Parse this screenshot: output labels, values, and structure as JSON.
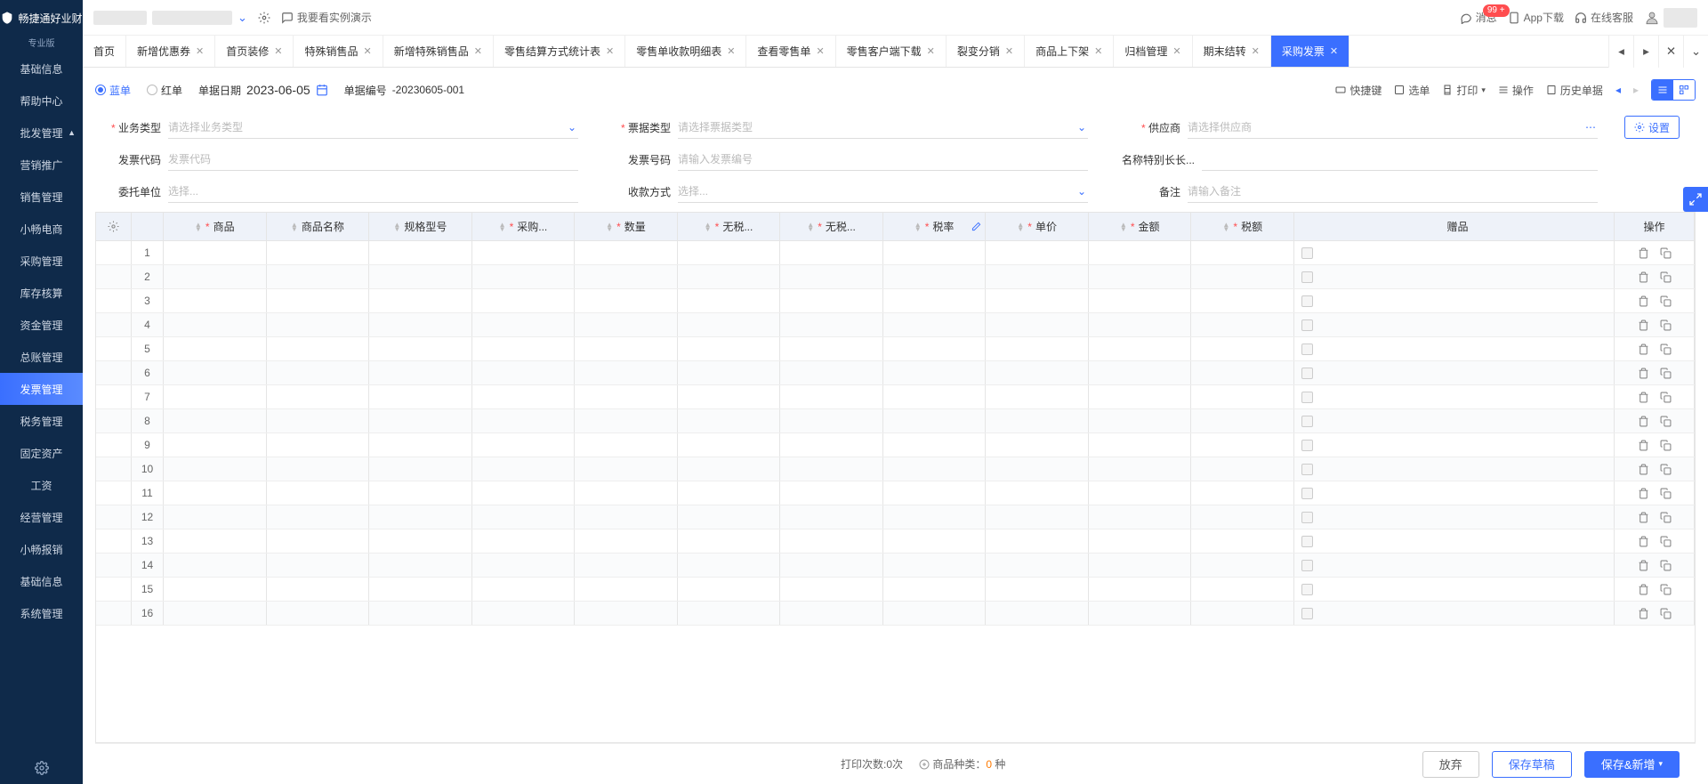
{
  "brand": {
    "name": "畅捷通好业财",
    "edition": "专业版"
  },
  "topbar": {
    "demo_link": "我要看实例演示",
    "msg": "消息",
    "msg_badge": "99 +",
    "app_dl": "App下载",
    "online_cs": "在线客服"
  },
  "sidebar": {
    "items": [
      {
        "label": "基础信息"
      },
      {
        "label": "帮助中心"
      },
      {
        "label": "批发管理",
        "caret": "▲"
      },
      {
        "label": "营销推广"
      },
      {
        "label": "销售管理"
      },
      {
        "label": "小畅电商"
      },
      {
        "label": "采购管理"
      },
      {
        "label": "库存核算"
      },
      {
        "label": "资金管理"
      },
      {
        "label": "总账管理"
      },
      {
        "label": "发票管理",
        "active": true
      },
      {
        "label": "税务管理"
      },
      {
        "label": "固定资产"
      },
      {
        "label": "工资"
      },
      {
        "label": "经营管理"
      },
      {
        "label": "小畅报销"
      },
      {
        "label": "基础信息"
      },
      {
        "label": "系统管理"
      }
    ]
  },
  "tabs": [
    {
      "label": "首页"
    },
    {
      "label": "新增优惠券",
      "x": true
    },
    {
      "label": "首页装修",
      "x": true
    },
    {
      "label": "特殊销售品",
      "x": true
    },
    {
      "label": "新增特殊销售品",
      "x": true
    },
    {
      "label": "零售结算方式统计表",
      "x": true
    },
    {
      "label": "零售单收款明细表",
      "x": true
    },
    {
      "label": "查看零售单",
      "x": true
    },
    {
      "label": "零售客户端下载",
      "x": true
    },
    {
      "label": "裂变分销",
      "x": true
    },
    {
      "label": "商品上下架",
      "x": true
    },
    {
      "label": "归档管理",
      "x": true
    },
    {
      "label": "期末结转",
      "x": true
    },
    {
      "label": "采购发票",
      "x": true,
      "active": true
    }
  ],
  "formTop": {
    "blue": "蓝单",
    "red": "红单",
    "doc_date_label": "单据日期",
    "doc_date": "2023-06-05",
    "doc_no_label": "单据编号",
    "doc_no": "-20230605-001"
  },
  "tools": {
    "shortcut": "快捷键",
    "select": "选单",
    "print": "打印",
    "operate": "操作",
    "history": "历史单据"
  },
  "fields": {
    "biz_type_label": "业务类型",
    "biz_type_ph": "请选择业务类型",
    "ticket_type_label": "票据类型",
    "ticket_type_ph": "请选择票据类型",
    "supplier_label": "供应商",
    "supplier_ph": "请选择供应商",
    "inv_code_label": "发票代码",
    "inv_code_ph": "发票代码",
    "inv_no_label": "发票号码",
    "inv_no_ph": "请输入发票编号",
    "long_name_label": "名称特别长长...",
    "entrust_label": "委托单位",
    "entrust_ph": "选择...",
    "pay_method_label": "收款方式",
    "pay_method_ph": "选择...",
    "remark_label": "备注",
    "remark_ph": "请输入备注",
    "settings_btn": "设置"
  },
  "table": {
    "columns": [
      {
        "label": "商品",
        "req": true,
        "sort": true
      },
      {
        "label": "商品名称",
        "sort": true
      },
      {
        "label": "规格型号",
        "sort": true
      },
      {
        "label": "采购...",
        "req": true,
        "sort": true
      },
      {
        "label": "数量",
        "req": true,
        "sort": true
      },
      {
        "label": "无税...",
        "req": true,
        "sort": true
      },
      {
        "label": "无税...",
        "req": true,
        "sort": true
      },
      {
        "label": "税率",
        "req": true,
        "sort": true,
        "edit": true
      },
      {
        "label": "单价",
        "req": true,
        "sort": true
      },
      {
        "label": "金额",
        "req": true,
        "sort": true
      },
      {
        "label": "税额",
        "req": true,
        "sort": true
      }
    ],
    "gift_col": "赠品",
    "op_col": "操作",
    "row_count": 16
  },
  "footer": {
    "print_times": "打印次数:0次",
    "sku_kinds_label": "商品种类：",
    "sku_kinds_val": "0",
    "sku_kinds_unit": " 种",
    "discard": "放弃",
    "save_draft": "保存草稿",
    "save_new": "保存&新增"
  }
}
